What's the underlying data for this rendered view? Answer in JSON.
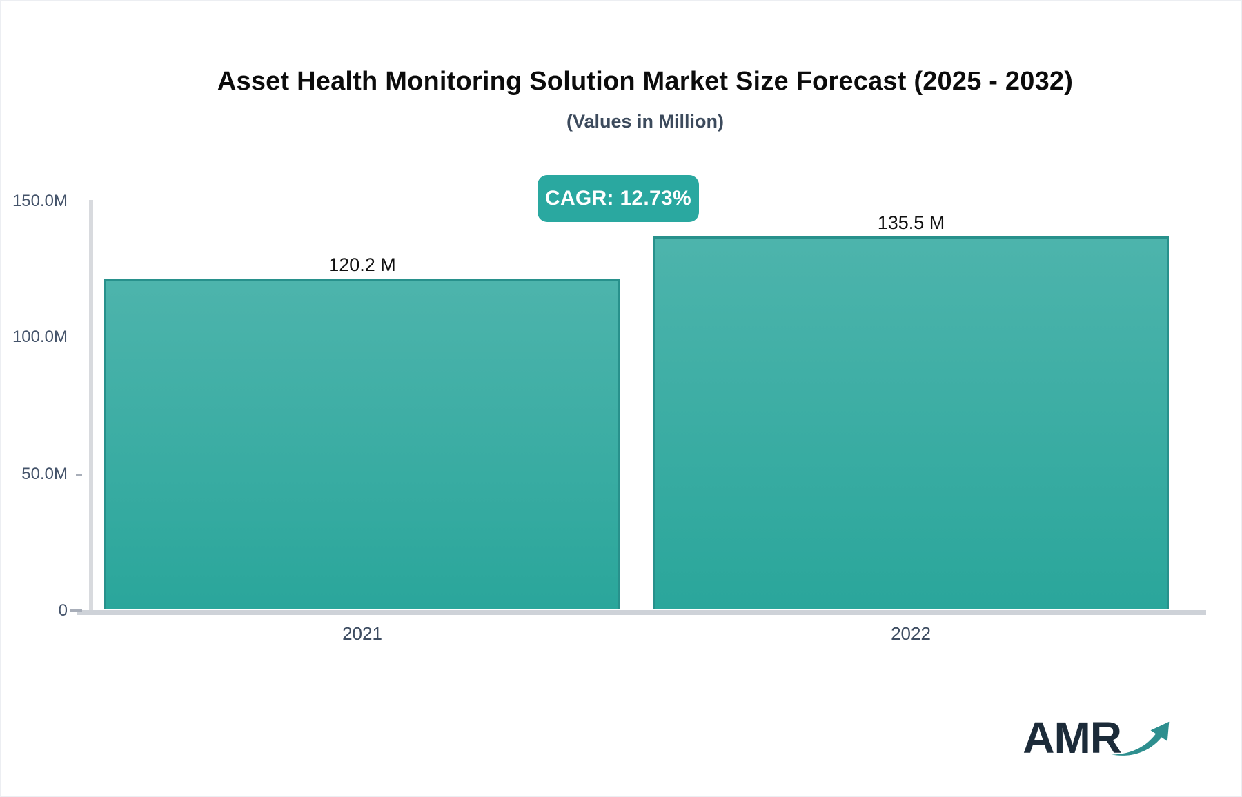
{
  "header": {
    "title": "Asset Health Monitoring Solution Market Size Forecast (2025 - 2032)",
    "subtitle": "(Values in Million)",
    "cagr_label": "CAGR: 12.73%"
  },
  "chart_data": {
    "type": "bar",
    "title": "Asset Health Monitoring Solution Market Size Forecast (2025 - 2032)",
    "subtitle": "(Values in Million)",
    "unit": "Million",
    "cagr_percent": 12.73,
    "categories": [
      "2021",
      "2022"
    ],
    "values": [
      120.2,
      135.5
    ],
    "value_labels": [
      "120.2 M",
      "135.5 M"
    ],
    "ylabel": "",
    "xlabel": "",
    "ylim": [
      0,
      150
    ],
    "y_ticks": [
      "150.0M",
      "100.0M",
      "50.0M",
      "0"
    ],
    "grid": false,
    "legend": false,
    "colors": {
      "bar_top": "#4db4ac",
      "bar_bottom": "#2aa69b",
      "bar_border": "#28918c",
      "badge_background": "#2aa8a0",
      "axis_line": "#d8dade",
      "tick_text": "#44536a"
    }
  },
  "branding": {
    "logo_text": "AMR"
  }
}
